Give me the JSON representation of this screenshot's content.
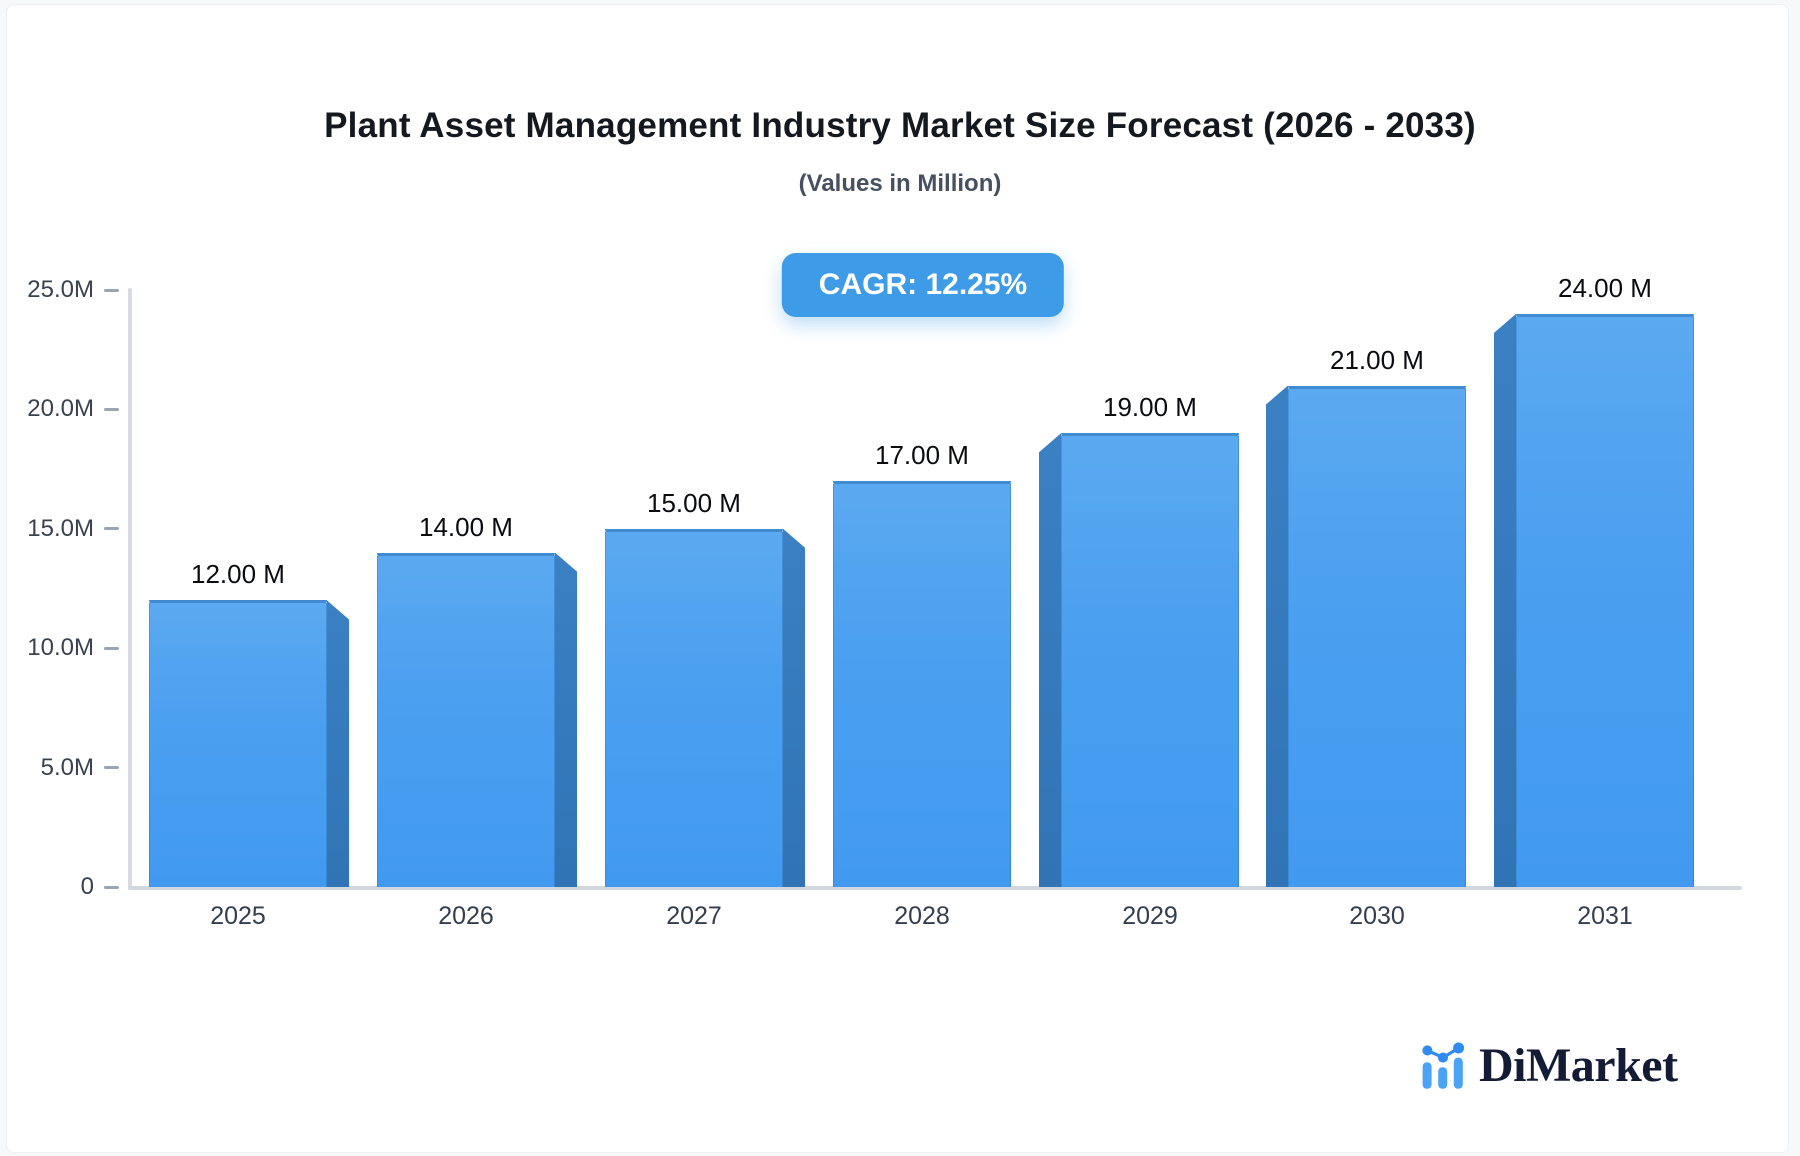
{
  "header": {
    "title": "Plant Asset Management Industry Market Size Forecast (2026 - 2033)",
    "subtitle": "(Values in Million)"
  },
  "badge": {
    "label": "CAGR: 12.25%"
  },
  "brand": {
    "name": "DiMarket"
  },
  "chart_data": {
    "type": "bar",
    "title": "Plant Asset Management Industry Market Size Forecast (2026 - 2033)",
    "subtitle": "(Values in Million)",
    "unit": "Million",
    "cagr": "12.25%",
    "categories": [
      "2025",
      "2026",
      "2027",
      "2028",
      "2029",
      "2030",
      "2031"
    ],
    "values": [
      12,
      14,
      15,
      17,
      19,
      21,
      24
    ],
    "bar_labels": [
      "12.00 M",
      "14.00 M",
      "15.00 M",
      "17.00 M",
      "19.00 M",
      "21.00 M",
      "24.00 M"
    ],
    "y_tick_values": [
      25,
      20,
      15,
      10,
      5,
      0
    ],
    "y_tick_labels": [
      "25.0M",
      "20.0M",
      "15.0M",
      "10.0M",
      "5.0M",
      "0"
    ],
    "ylim": [
      0,
      25
    ],
    "grid": false,
    "legend": false
  },
  "colors": {
    "accent_blue": "#3e9be8",
    "bar_face_top": "#5ba9f0",
    "bar_face_bottom": "#429af0",
    "bar_side": "#3074b6",
    "axis_line": "#d3d7de",
    "tick": "#9aa5b1",
    "title_text": "#14181f",
    "subtitle_text": "#46505e",
    "axis_label": "#39424f",
    "value_label": "#0a0c10",
    "brand_navy": "#131b35",
    "brand_blue": "#4ba3f6"
  }
}
